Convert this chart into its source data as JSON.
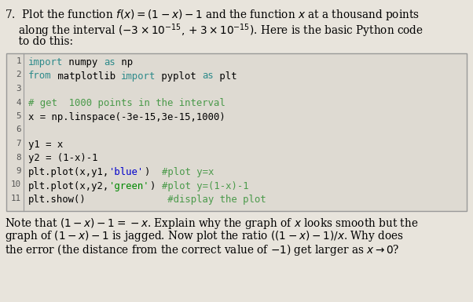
{
  "bg_color": "#e8e4dc",
  "box_bg": "#dedad2",
  "box_border": "#999999",
  "title_fs": 9.8,
  "code_fs": 8.8,
  "footer_fs": 9.8,
  "keyword_color": "#2e8b8b",
  "string_blue_color": "#0000cc",
  "string_green_color": "#008800",
  "comment_color": "#4a9a4a",
  "normal_color": "#000000",
  "linenum_color": "#555555",
  "code_lines": [
    {
      "num": "1",
      "segments": [
        {
          "t": "import",
          "c": "#2e8b8b",
          "b": false
        },
        {
          "t": " numpy ",
          "c": "#000000",
          "b": false
        },
        {
          "t": "as",
          "c": "#2e8b8b",
          "b": false
        },
        {
          "t": " np",
          "c": "#000000",
          "b": false
        }
      ]
    },
    {
      "num": "2",
      "segments": [
        {
          "t": "from",
          "c": "#2e8b8b",
          "b": false
        },
        {
          "t": " matplotlib ",
          "c": "#000000",
          "b": false
        },
        {
          "t": "import",
          "c": "#2e8b8b",
          "b": false
        },
        {
          "t": " pyplot ",
          "c": "#000000",
          "b": false
        },
        {
          "t": "as",
          "c": "#2e8b8b",
          "b": false
        },
        {
          "t": " plt",
          "c": "#000000",
          "b": false
        }
      ]
    },
    {
      "num": "3",
      "segments": []
    },
    {
      "num": "4",
      "segments": [
        {
          "t": "# get  1000 points in the interval",
          "c": "#4a9a4a",
          "b": false
        }
      ]
    },
    {
      "num": "5",
      "segments": [
        {
          "t": "x = np.linspace(-3e-15,3e-15,1000)",
          "c": "#000000",
          "b": false
        }
      ]
    },
    {
      "num": "6",
      "segments": []
    },
    {
      "num": "7",
      "segments": [
        {
          "t": "y1 = x",
          "c": "#000000",
          "b": false
        }
      ]
    },
    {
      "num": "8",
      "segments": [
        {
          "t": "y2 = (1-x)-1",
          "c": "#000000",
          "b": false
        }
      ]
    },
    {
      "num": "9",
      "segments": [
        {
          "t": "plt.plot(x,y1,",
          "c": "#000000",
          "b": false
        },
        {
          "t": "'blue'",
          "c": "#0000cc",
          "b": false
        },
        {
          "t": ")  ",
          "c": "#000000",
          "b": false
        },
        {
          "t": "#plot y=x",
          "c": "#4a9a4a",
          "b": false
        }
      ]
    },
    {
      "num": "10",
      "segments": [
        {
          "t": "plt.plot(x,y2,",
          "c": "#000000",
          "b": false
        },
        {
          "t": "'green'",
          "c": "#008800",
          "b": false
        },
        {
          "t": ") ",
          "c": "#000000",
          "b": false
        },
        {
          "t": "#plot y=(1-x)-1",
          "c": "#4a9a4a",
          "b": false
        }
      ]
    },
    {
      "num": "11",
      "segments": [
        {
          "t": "plt.show()",
          "c": "#000000",
          "b": false
        },
        {
          "t": "              #display the plot",
          "c": "#4a9a4a",
          "b": false
        }
      ]
    }
  ]
}
